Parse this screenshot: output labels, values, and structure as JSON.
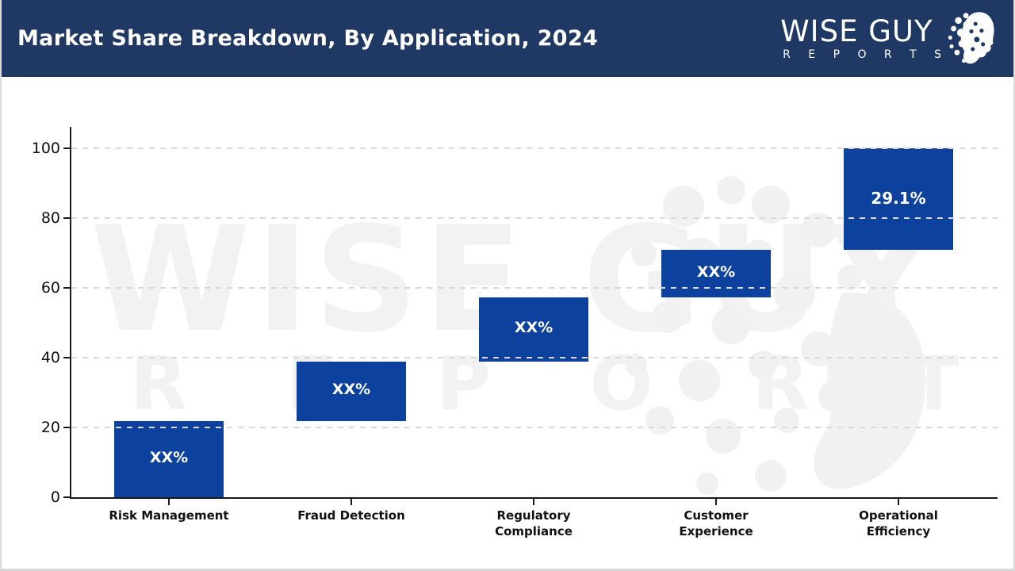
{
  "header": {
    "title": "Market Share Breakdown, By Application, 2024",
    "bg_color": "#1f3864",
    "logo": {
      "wordmark": "WISE GUY",
      "subtitle": "R E P O R T S"
    }
  },
  "watermark": {
    "line1": "WISE GUY",
    "line2": "R E P O R T S"
  },
  "chart_data": {
    "type": "bar",
    "subtype": "waterfall",
    "title": "Market Share Breakdown, By Application, 2024",
    "xlabel": "",
    "ylabel": "",
    "ylim": [
      0,
      100
    ],
    "y_ticks": [
      0,
      20,
      40,
      60,
      80,
      100
    ],
    "grid": "horizontal-dashed",
    "legend": "none",
    "bar_color": "#0c429d",
    "categories": [
      "Risk Management",
      "Fraud Detection",
      "Regulatory Compliance",
      "Customer Experience",
      "Operational Efficiency"
    ],
    "category_label_lines": [
      [
        "Risk Management"
      ],
      [
        "Fraud Detection"
      ],
      [
        "Regulatory",
        "Compliance"
      ],
      [
        "Customer",
        "Experience"
      ],
      [
        "Operational",
        "Efficiency"
      ]
    ],
    "segments": [
      {
        "category": "Risk Management",
        "start": 0,
        "end": 21.8,
        "value_label": "XX%"
      },
      {
        "category": "Fraud Detection",
        "start": 21.8,
        "end": 38.9,
        "value_label": "XX%"
      },
      {
        "category": "Regulatory Compliance",
        "start": 38.9,
        "end": 57.3,
        "value_label": "XX%"
      },
      {
        "category": "Customer Experience",
        "start": 57.3,
        "end": 70.9,
        "value_label": "XX%"
      },
      {
        "category": "Operational Efficiency",
        "start": 70.9,
        "end": 100,
        "value_label": "29.1%"
      }
    ]
  }
}
